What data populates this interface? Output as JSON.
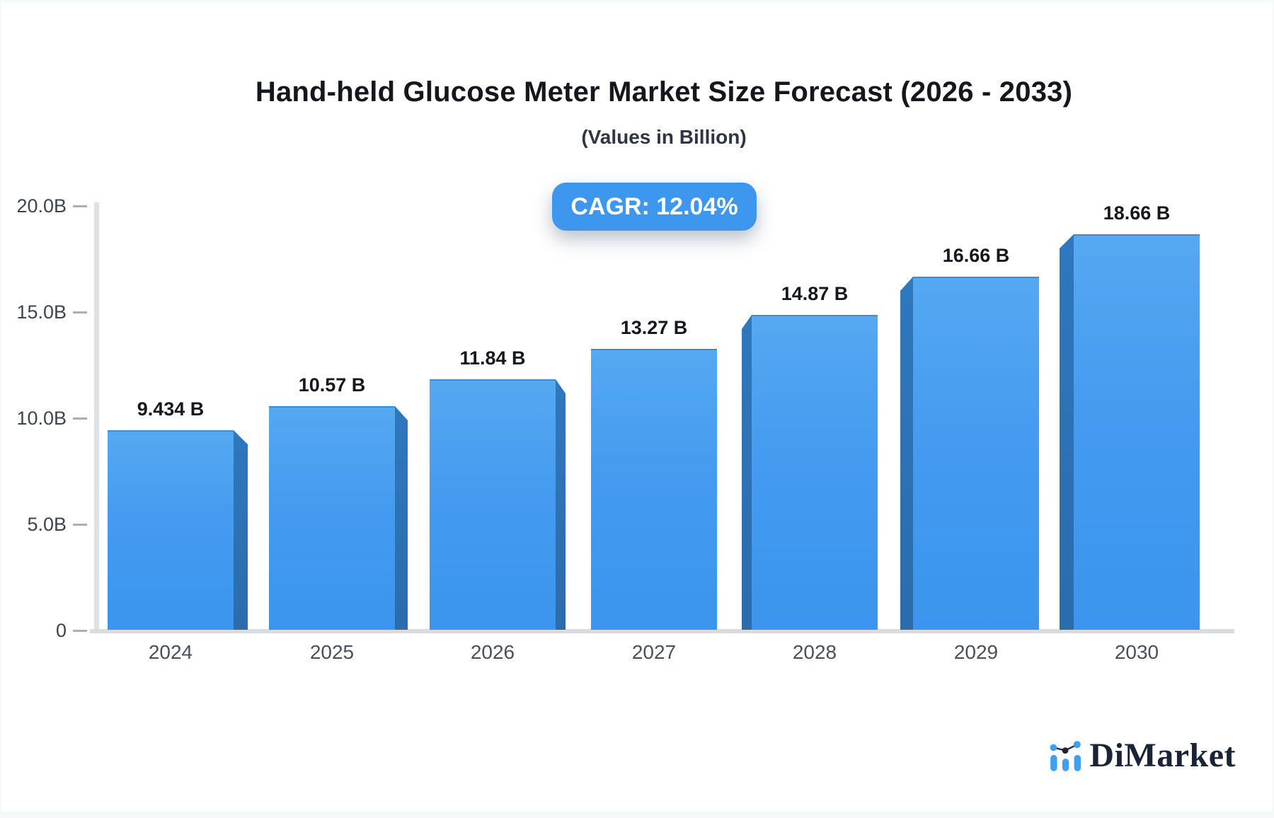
{
  "header": {
    "title": "Hand-held Glucose Meter Market Size Forecast (2026 - 2033)",
    "subtitle": "(Values in Billion)",
    "cagr_label": "CAGR: 12.04%"
  },
  "chart_data": {
    "type": "bar",
    "title": "Hand-held Glucose Meter Market Size Forecast (2026 - 2033)",
    "subtitle": "(Values in Billion)",
    "annotation": "CAGR: 12.04%",
    "categories": [
      "2024",
      "2025",
      "2026",
      "2027",
      "2028",
      "2029",
      "2030"
    ],
    "values": [
      9.434,
      10.57,
      11.84,
      13.27,
      14.87,
      16.66,
      18.66
    ],
    "value_labels": [
      "9.434 B",
      "10.57 B",
      "11.84 B",
      "13.27 B",
      "14.87 B",
      "16.66 B",
      "18.66 B"
    ],
    "xlabel": "",
    "ylabel": "",
    "ylim": [
      0,
      20
    ],
    "y_ticks": [
      {
        "label": "20.0B",
        "value": 20
      },
      {
        "label": "15.0B",
        "value": 15
      },
      {
        "label": "10.0B",
        "value": 10
      },
      {
        "label": "5.0B",
        "value": 5
      },
      {
        "label": "0",
        "value": 0
      }
    ],
    "grid": false,
    "legend": false,
    "bar_style": "3d-perspective, side faces angled toward center bar"
  },
  "colors": {
    "bar_face_top": "#55a8f1",
    "bar_face_bottom": "#3b95ee",
    "bar_side": "#2d72b6",
    "badge_bg": "#3e97ee",
    "badge_text": "#ffffff",
    "title_text": "#15171c",
    "subtitle_text": "#2e3642",
    "value_label_text": "#15181d",
    "axis_label_text": "#3d4553",
    "x_label_text": "#49505c",
    "axis_line": "#dcdee2",
    "logo_navy": "#1b2437",
    "logo_blue": "#3f9ff2"
  },
  "logo": {
    "text": "DiMarket",
    "icon": "bar-chart-with-trend-dots-icon"
  }
}
